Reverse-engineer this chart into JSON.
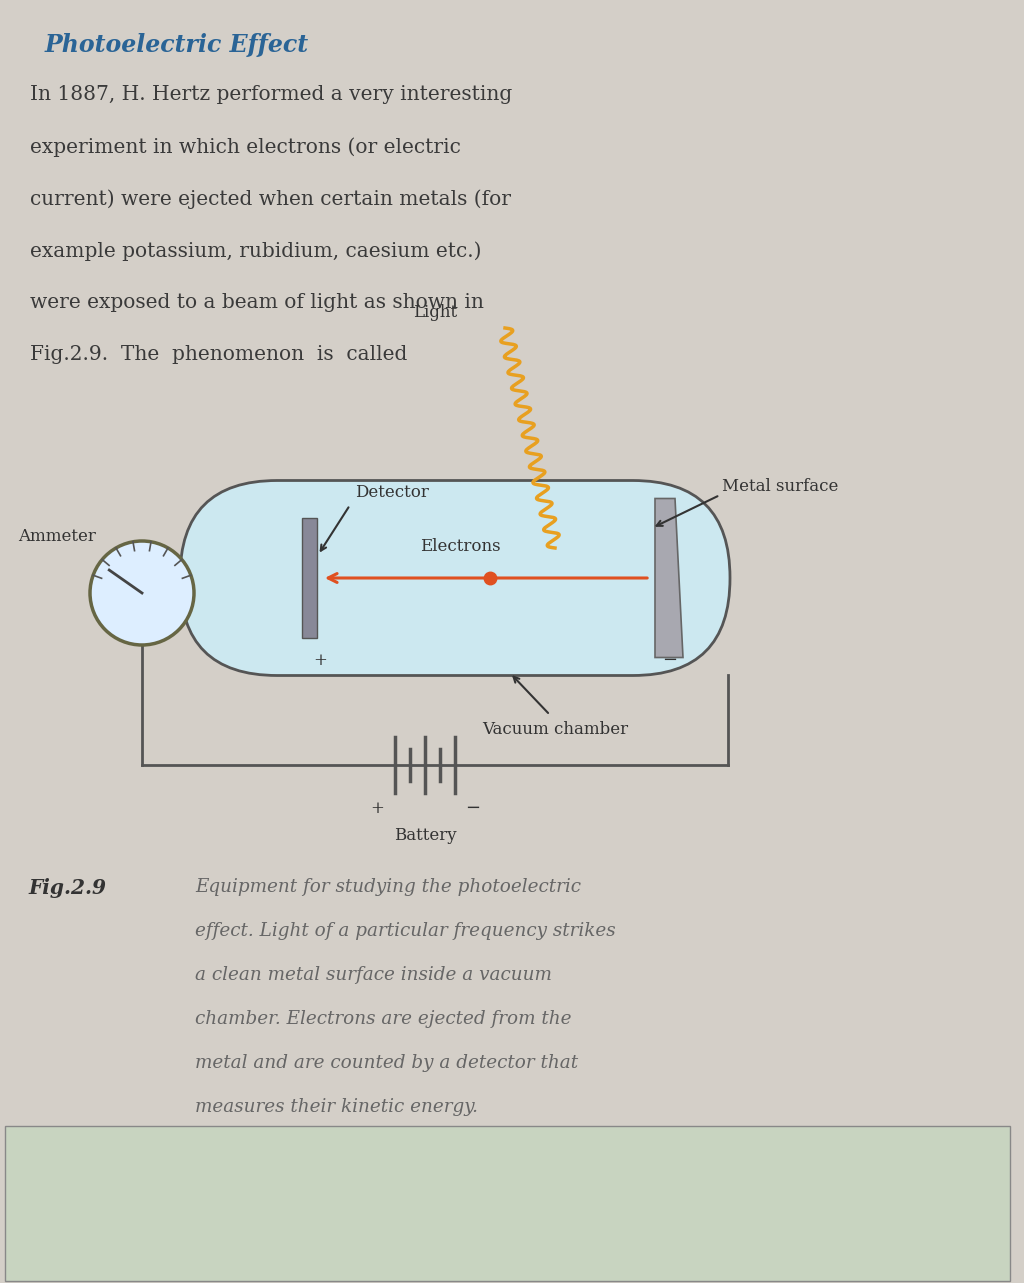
{
  "bg_color": "#d4cfc8",
  "title": "Photoelectric Effect",
  "title_color": "#2a6496",
  "body_lines": [
    "In 1887, H. Hertz performed a very interesting",
    "experiment in which electrons (or electric",
    "current) were ejected when certain metals (for",
    "example potassium, rubidium, caesium etc.)",
    "were exposed to a beam of light as shown in",
    "Fig.2.9.  The  phenomenon  is  called"
  ],
  "body_color": "#3a3a3a",
  "label_light": "Light",
  "label_detector": "Detector",
  "label_metal": "Metal surface",
  "label_electrons": "Electrons",
  "label_ammeter": "Ammeter",
  "label_vacuum": "Vacuum chamber",
  "label_battery": "Battery",
  "fig_label": "Fig.2.9",
  "fig_caption_lines": [
    "Equipment for studying the photoelectric",
    "effect. Light of a particular frequency strikes",
    "a clean metal surface inside a vacuum",
    "chamber. Electrons are ejected from the",
    "metal and are counted by a detector that",
    "measures their kinetic energy."
  ],
  "chamber_fill": "#cce8f0",
  "chamber_edge": "#555555",
  "light_color": "#e8a020",
  "electron_color": "#e05020",
  "wire_color": "#555555",
  "ammeter_face": "#ddeeff",
  "ammeter_edge": "#666644",
  "bottom_box_color": "#c8d4c0"
}
